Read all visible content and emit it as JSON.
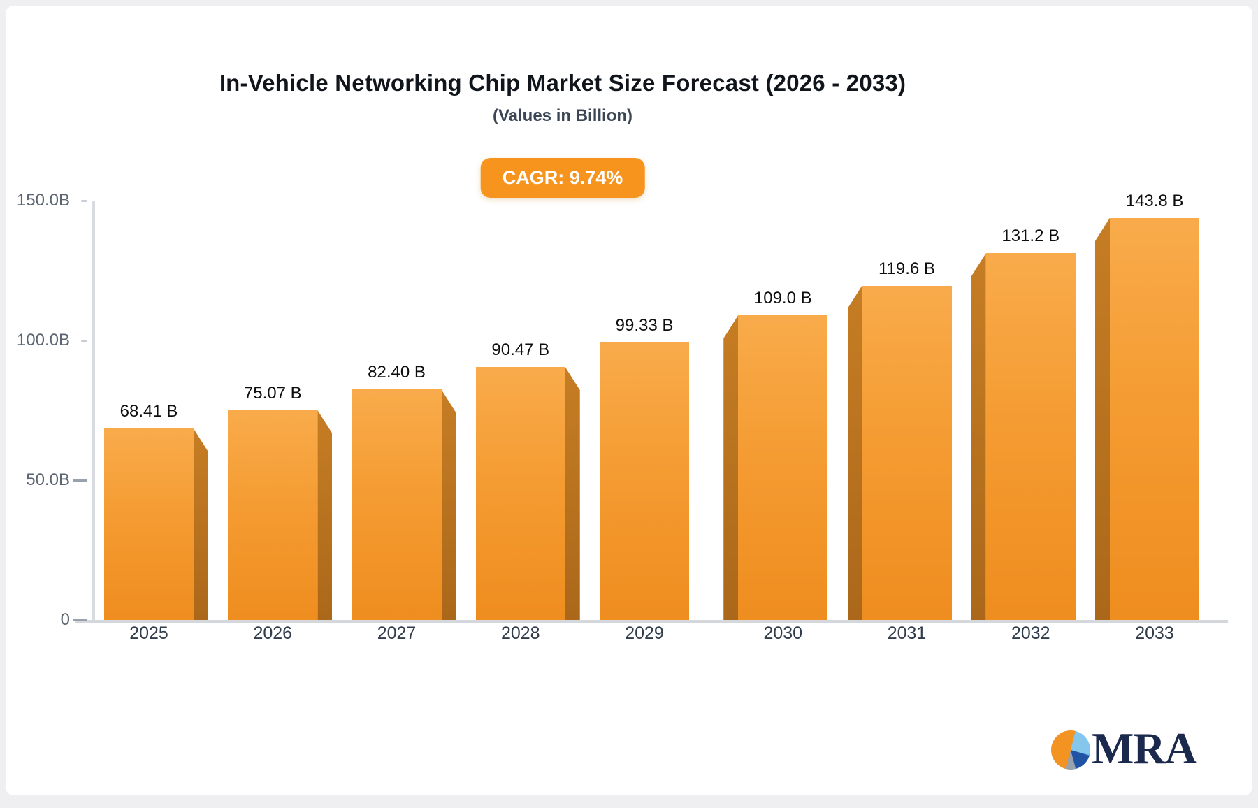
{
  "page": {
    "background": "#EFEFF1",
    "card_background": "#FFFFFF"
  },
  "header": {
    "title": "In-Vehicle Networking Chip Market Size Forecast (2026 - 2033)",
    "subtitle": "(Values in Billion)",
    "cagr_badge": "CAGR: 9.74%"
  },
  "chart_data": {
    "type": "bar",
    "title": "In-Vehicle Networking Chip Market Size Forecast (2026 - 2033)",
    "subtitle": "(Values in Billion)",
    "annotation": "CAGR: 9.74%",
    "categories": [
      "2025",
      "2026",
      "2027",
      "2028",
      "2029",
      "2030",
      "2031",
      "2032",
      "2033"
    ],
    "values": [
      68.41,
      75.07,
      82.4,
      90.47,
      99.33,
      109.0,
      119.6,
      131.2,
      143.8
    ],
    "value_labels": [
      "68.41 B",
      "75.07 B",
      "82.40 B",
      "90.47 B",
      "99.33 B",
      "109.0 B",
      "119.6 B",
      "131.2 B",
      "143.8 B"
    ],
    "xlabel": "",
    "ylabel": "",
    "ylim": [
      0,
      150
    ],
    "y_ticks": [
      {
        "label": "150.0B",
        "value": 150
      },
      {
        "label": "100.0B",
        "value": 100
      },
      {
        "label": "50.0B",
        "value": 50
      },
      {
        "label": "0",
        "value": 0
      }
    ],
    "grid": "off",
    "legend": "off",
    "bar_style": "3d-extruded",
    "colors": {
      "bar_face_top": "#F9AB4B",
      "bar_face_bottom": "#EF8D1F",
      "bar_side": "#B9731D",
      "axis_line": "#D7DADE",
      "y_tick_label": "#5B6572",
      "category_label": "#313D4B",
      "value_label": "#0E0E10",
      "badge_background": "#F7941E"
    }
  },
  "logo": {
    "text": "MRA",
    "text_color": "#1B2A4C",
    "pie_slice_colors": [
      "#F39322",
      "#85C6ED",
      "#2053A4",
      "#98A2AD"
    ]
  }
}
